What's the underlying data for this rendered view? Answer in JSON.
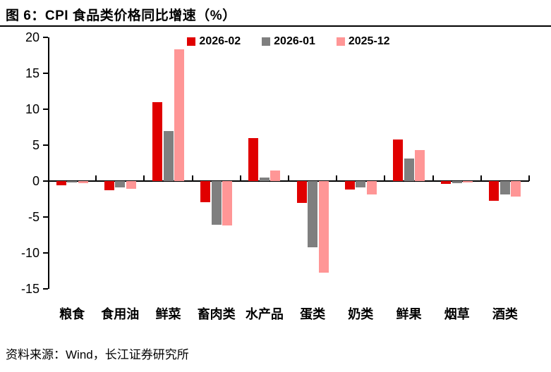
{
  "title": "图 6：CPI 食品类价格同比增速（%）",
  "source": "资料来源：Wind，长江证券研究所",
  "chart_data": {
    "type": "bar",
    "title": "CPI 食品类价格同比增速（%）",
    "categories": [
      "粮食",
      "食用油",
      "鲜菜",
      "畜肉类",
      "水产品",
      "蛋类",
      "奶类",
      "鲜果",
      "烟草",
      "酒类"
    ],
    "series": [
      {
        "name": "2026-02",
        "color": "#E00000",
        "values": [
          -0.6,
          -1.3,
          11.0,
          -2.9,
          6.0,
          -3.0,
          -1.2,
          5.8,
          -0.4,
          -2.7
        ]
      },
      {
        "name": "2026-01",
        "color": "#7F7F7F",
        "values": [
          -0.2,
          -0.9,
          7.0,
          -6.1,
          0.5,
          -9.2,
          -0.9,
          3.1,
          -0.3,
          -1.9
        ]
      },
      {
        "name": "2025-12",
        "color": "#FF9696",
        "values": [
          -0.3,
          -1.1,
          18.3,
          -6.2,
          1.5,
          -12.7,
          -1.9,
          4.3,
          -0.2,
          -2.2
        ]
      }
    ],
    "ylim": [
      -15,
      20
    ],
    "yticks": [
      20,
      15,
      10,
      5,
      0,
      -5,
      -10,
      -15
    ],
    "xlabel": "",
    "ylabel": "",
    "grid": false,
    "legend_position": "top-center",
    "axis_color": "#000000"
  }
}
